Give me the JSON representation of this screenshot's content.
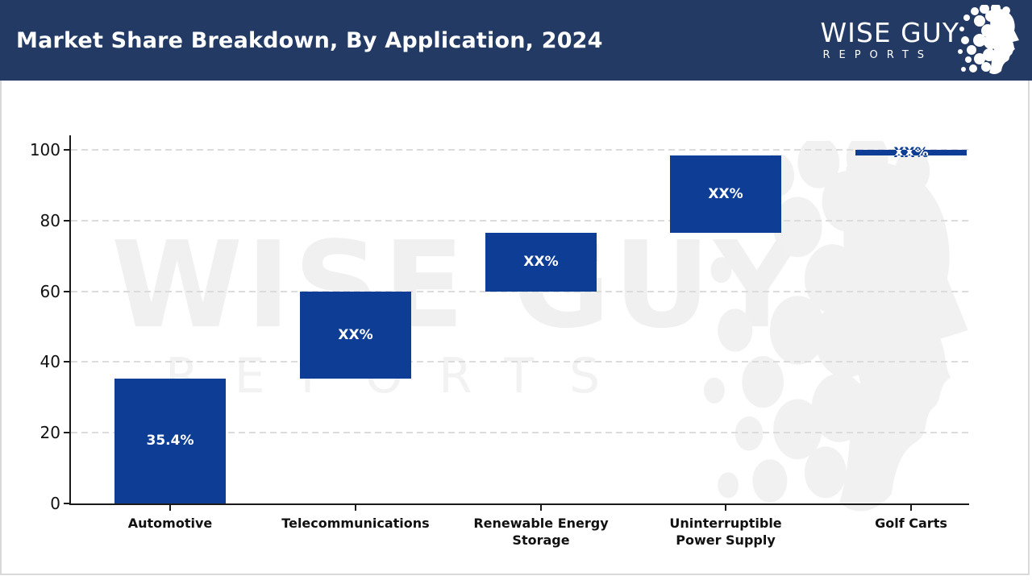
{
  "header": {
    "title": "Market Share Breakdown, By Application, 2024",
    "logo": {
      "line1": "WISE GUY",
      "line2": "REPORTS"
    }
  },
  "watermark": {
    "line1": "WISE GUY",
    "line2": "REPORTS"
  },
  "colors": {
    "header_bg": "#223a64",
    "bar": "#0d3d94",
    "grid": "#dcdcdc",
    "axis": "#1a1a1a",
    "bar_label": "#ffffff",
    "tick_label": "#111111"
  },
  "chart_data": {
    "type": "bar",
    "subtype": "waterfall",
    "title": "Market Share Breakdown, By Application, 2024",
    "categories": [
      "Automotive",
      "Telecommunications",
      "Renewable Energy\nStorage",
      "Uninterruptible\nPower Supply",
      "Golf Carts"
    ],
    "segments": [
      {
        "category": "Automotive",
        "start": 0,
        "end": 35.4,
        "label": "35.4%"
      },
      {
        "category": "Telecommunications",
        "start": 35.4,
        "end": 60,
        "label": "XX%"
      },
      {
        "category": "Renewable Energy Storage",
        "start": 60,
        "end": 76.5,
        "label": "XX%"
      },
      {
        "category": "Uninterruptible Power Supply",
        "start": 76.5,
        "end": 98.3,
        "label": "XX%"
      },
      {
        "category": "Golf Carts",
        "start": 98.3,
        "end": 100,
        "label": "XX%"
      }
    ],
    "yticks": [
      0,
      20,
      40,
      60,
      80,
      100
    ],
    "ylim": [
      0,
      103.5
    ],
    "xlabel": "",
    "ylabel": "",
    "grid": "horizontal-dashed",
    "legend": "none",
    "bar_color": "#0d3d94"
  }
}
